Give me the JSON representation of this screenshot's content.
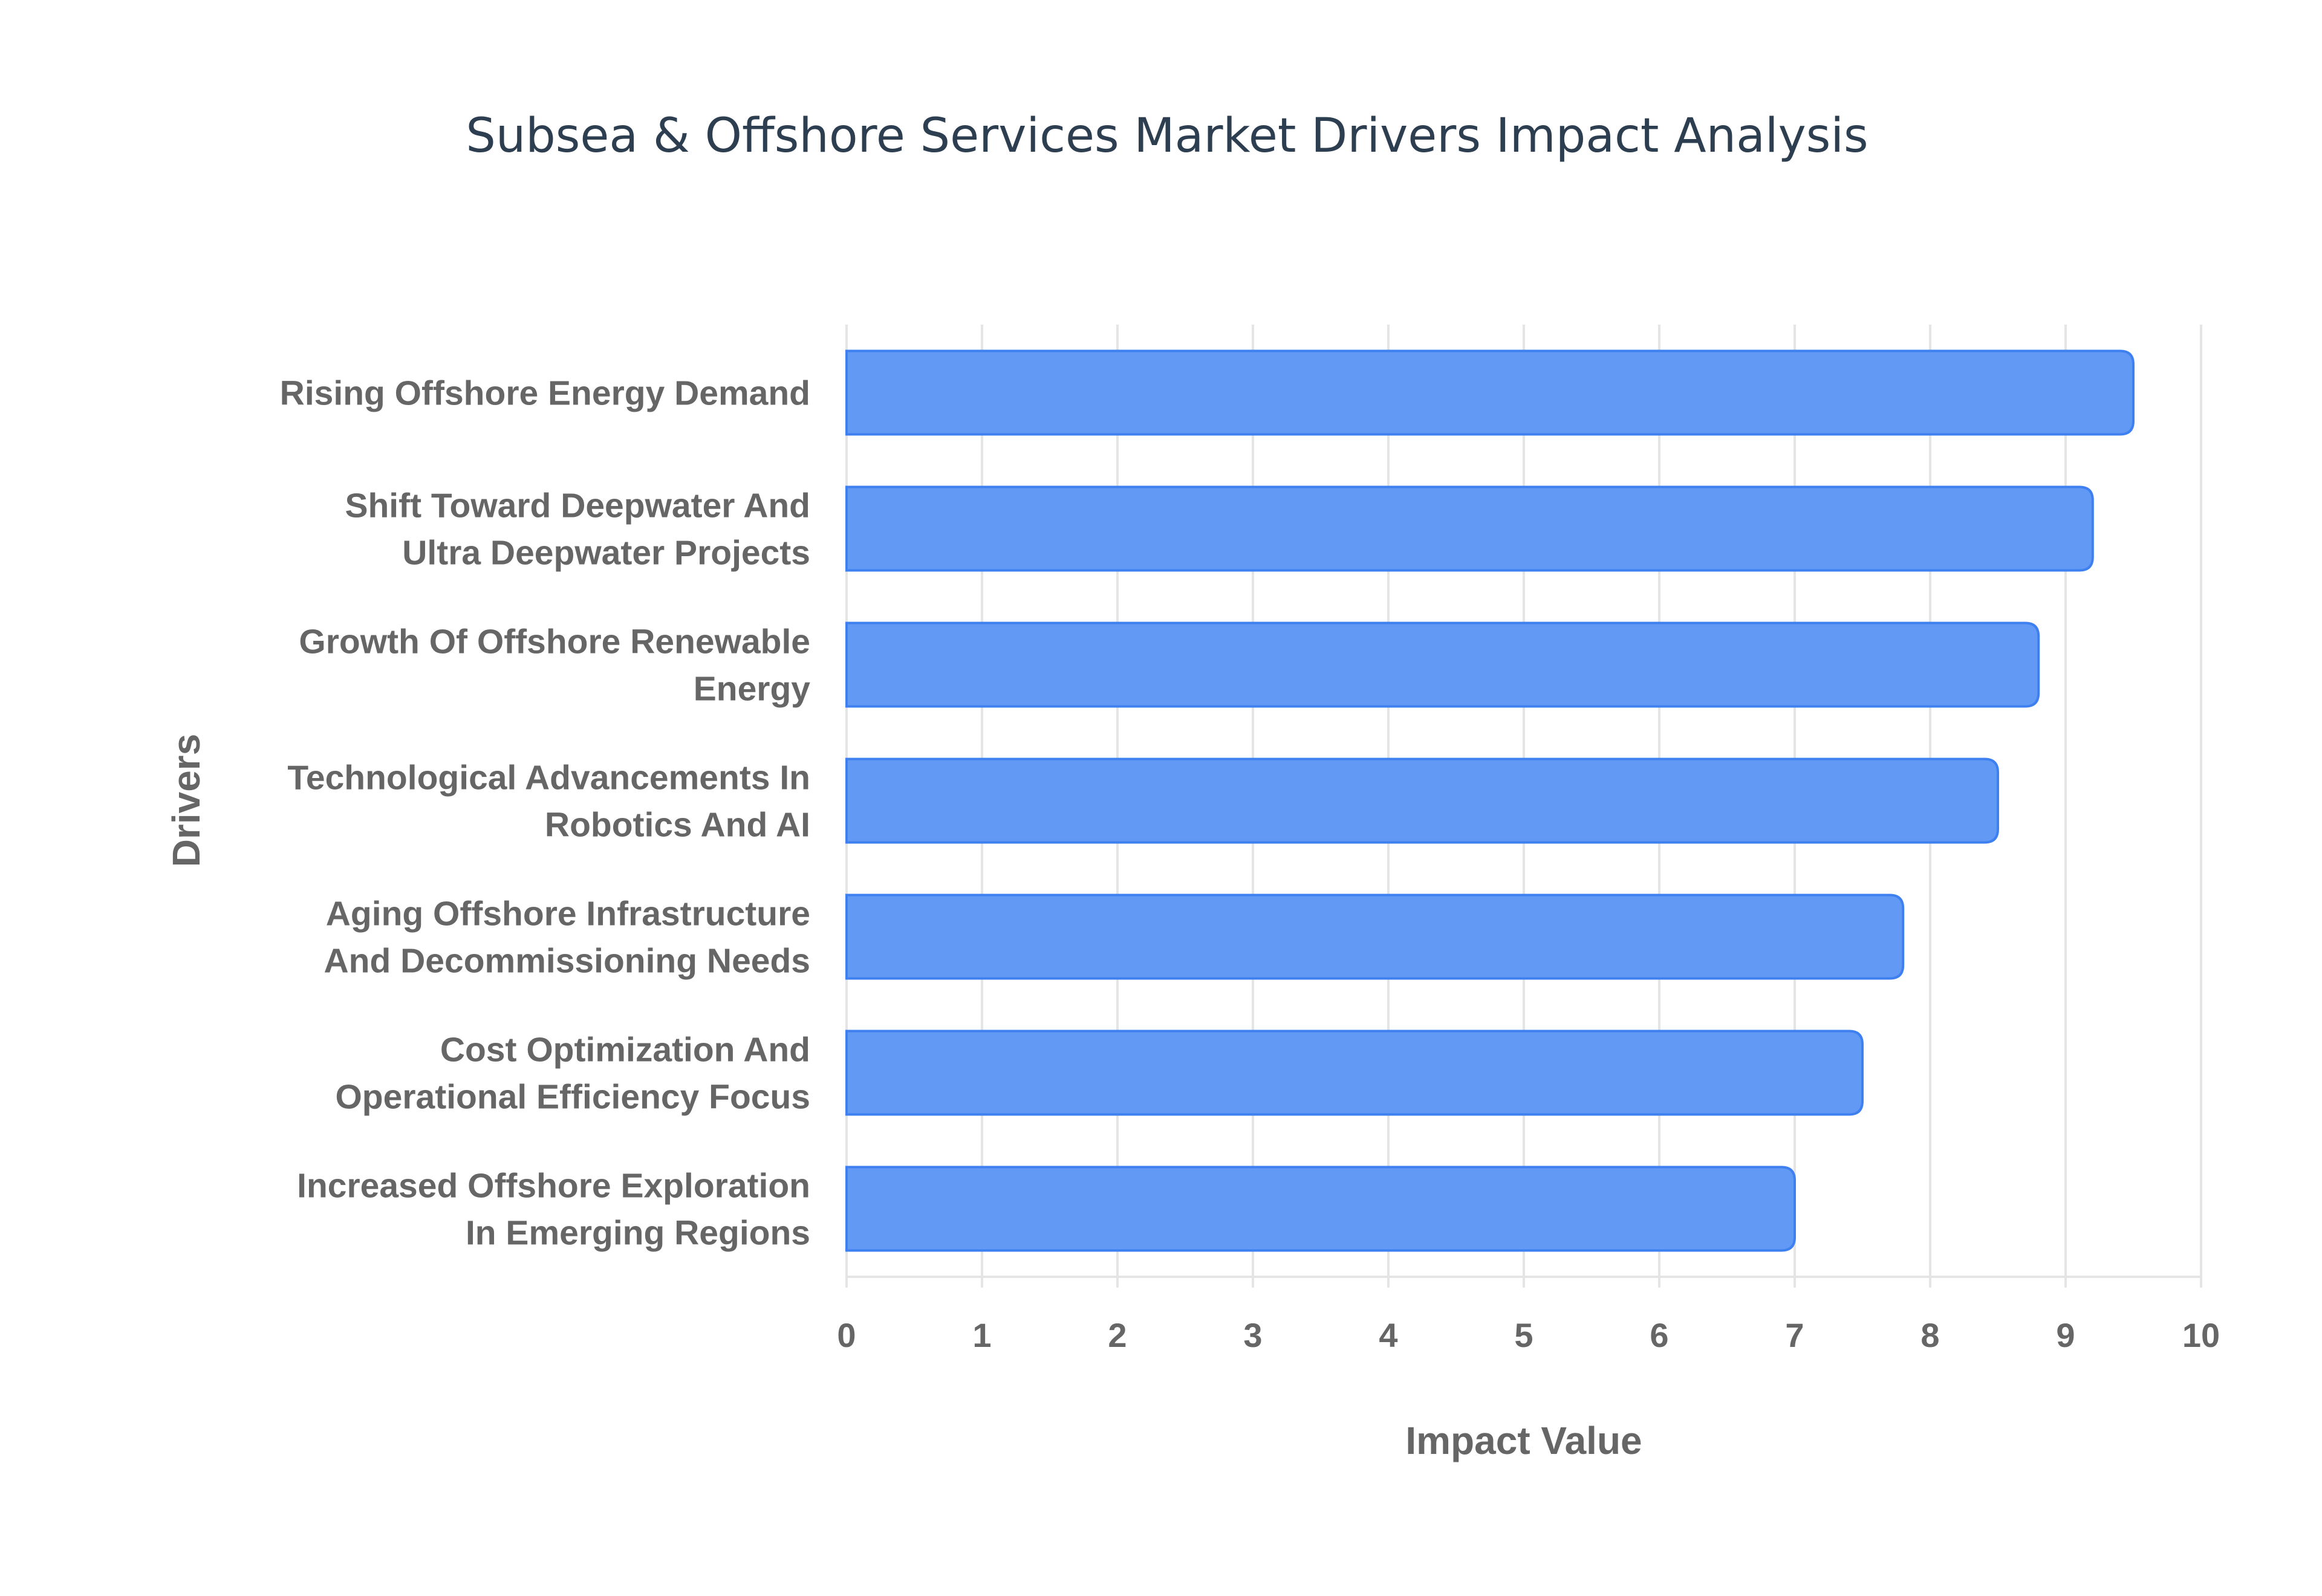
{
  "chart_data": {
    "type": "bar",
    "orientation": "horizontal",
    "title": "Subsea & Offshore Services Market Drivers Impact Analysis",
    "xlabel": "Impact Value",
    "ylabel": "Drivers",
    "xlim": [
      0,
      10
    ],
    "xticks": [
      "0",
      "1",
      "2",
      "3",
      "4",
      "5",
      "6",
      "7",
      "8",
      "9",
      "10"
    ],
    "grid": true,
    "categories": [
      [
        "Rising Offshore Energy Demand"
      ],
      [
        "Shift Toward Deepwater And",
        "Ultra Deepwater Projects"
      ],
      [
        "Growth Of Offshore Renewable",
        "Energy"
      ],
      [
        "Technological Advancements In",
        "Robotics And AI"
      ],
      [
        "Aging Offshore Infrastructure",
        "And Decommissioning Needs"
      ],
      [
        "Cost Optimization And",
        "Operational Efficiency Focus"
      ],
      [
        "Increased Offshore Exploration",
        "In Emerging Regions"
      ]
    ],
    "values": [
      9.5,
      9.2,
      8.8,
      8.5,
      7.8,
      7.5,
      7.0
    ],
    "colors": {
      "bar_fill": "#6199f5",
      "bar_border": "#3f80f0",
      "grid": "#e5e5e5",
      "title": "#2c3e50",
      "text": "#666666"
    }
  }
}
